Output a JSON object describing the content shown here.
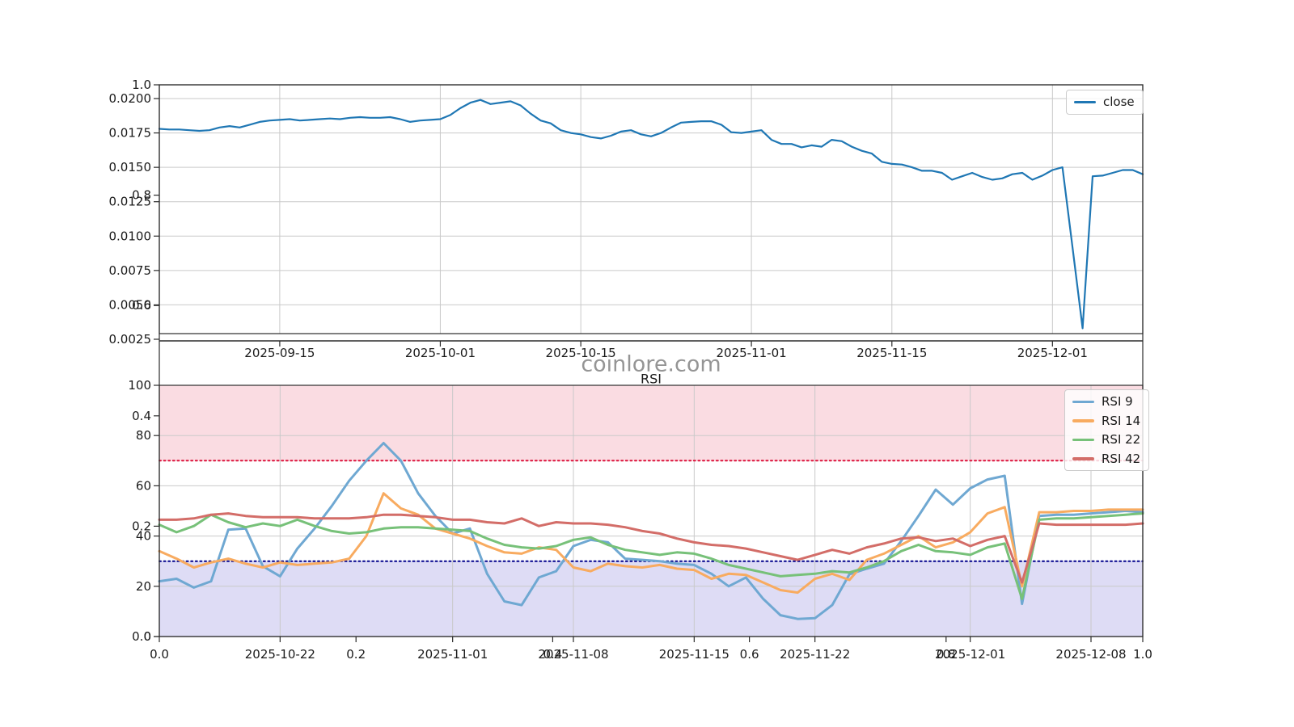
{
  "watermark": "coinlore.com",
  "rsi_title": "RSI",
  "figure_axis": {
    "y_ticks": [
      "1.0",
      "0.8",
      "0.6",
      "0.4",
      "0.2",
      "0.0"
    ],
    "x_ticks": [
      "0.0",
      "0.2",
      "0.4",
      "0.6",
      "0.8",
      "1.0"
    ]
  },
  "colors": {
    "close_line": "#1f77b4",
    "rsi9": "#6fa8d2",
    "rsi14": "#f8ab60",
    "rsi22": "#77c179",
    "rsi42": "#d36d68",
    "overbought_dotted": "#dc143c",
    "oversold_dotted": "#00008b",
    "overbought_band": "#fadce2",
    "oversold_band": "#dedcf5",
    "grid": "#c9c9c9",
    "spine": "#2b2b2b"
  },
  "chart_data": [
    {
      "type": "line",
      "title": "",
      "x_start_date": "2025-09-03",
      "x_end_date": "2025-12-10",
      "x_tick_labels": [
        "2025-09-15",
        "2025-10-01",
        "2025-10-15",
        "2025-11-01",
        "2025-11-15",
        "2025-12-01"
      ],
      "x_tick_days": [
        12,
        28,
        42,
        59,
        73,
        89
      ],
      "y_tick_labels": [
        "0.0200",
        "0.0175",
        "0.0150",
        "0.0125",
        "0.0100",
        "0.0075",
        "0.0050",
        "0.0025"
      ],
      "y_tick_values": [
        0.02,
        0.0175,
        0.015,
        0.0125,
        0.01,
        0.0075,
        0.005,
        0.0025
      ],
      "ylim": [
        0.0023,
        0.021
      ],
      "grid": true,
      "legend_position": "upper right",
      "series": [
        {
          "name": "close",
          "color": "#1f77b4",
          "values": [
            0.0178,
            0.01775,
            0.01775,
            0.0177,
            0.01765,
            0.0177,
            0.0179,
            0.018,
            0.0179,
            0.0181,
            0.0183,
            0.0184,
            0.01845,
            0.0185,
            0.0184,
            0.01845,
            0.0185,
            0.01855,
            0.0185,
            0.0186,
            0.01865,
            0.0186,
            0.0186,
            0.01865,
            0.0185,
            0.0183,
            0.0184,
            0.01845,
            0.0185,
            0.0188,
            0.0193,
            0.0197,
            0.0199,
            0.0196,
            0.0197,
            0.0198,
            0.0195,
            0.0189,
            0.0184,
            0.0182,
            0.0177,
            0.0175,
            0.0174,
            0.0172,
            0.0171,
            0.0173,
            0.0176,
            0.0177,
            0.0174,
            0.01725,
            0.0175,
            0.0179,
            0.01825,
            0.0183,
            0.01835,
            0.01835,
            0.0181,
            0.01755,
            0.0175,
            0.0176,
            0.0177,
            0.017,
            0.0167,
            0.0167,
            0.01645,
            0.0166,
            0.0165,
            0.017,
            0.0169,
            0.0165,
            0.0162,
            0.016,
            0.0154,
            0.01525,
            0.0152,
            0.015,
            0.01475,
            0.01475,
            0.0146,
            0.0141,
            0.01435,
            0.0146,
            0.0143,
            0.0141,
            0.0142,
            0.0145,
            0.0146,
            0.0141,
            0.0144,
            0.0148,
            0.015,
            0.0092,
            0.0033,
            0.01435,
            0.0144,
            0.0146,
            0.0148,
            0.0148,
            0.0145
          ]
        }
      ]
    },
    {
      "type": "line",
      "title": "RSI",
      "x_start_date": "2025-10-15",
      "x_end_date": "2025-12-11",
      "x_tick_labels": [
        "2025-10-22",
        "2025-11-01",
        "2025-11-08",
        "2025-11-15",
        "2025-11-22",
        "2025-12-01",
        "2025-12-08"
      ],
      "x_tick_days": [
        7,
        17,
        24,
        31,
        38,
        47,
        54
      ],
      "y_tick_labels": [
        "100",
        "80",
        "60",
        "40",
        "20",
        "0"
      ],
      "y_tick_values": [
        100,
        80,
        60,
        40,
        20,
        0
      ],
      "ylim": [
        0,
        100
      ],
      "grid": true,
      "legend_position": "upper right",
      "overbought_line": {
        "value": 70,
        "style": "dotted",
        "color": "#dc143c"
      },
      "oversold_line": {
        "value": 30,
        "style": "dotted",
        "color": "#00008b"
      },
      "overbought_band": {
        "from": 70,
        "to": 100
      },
      "oversold_band": {
        "from": 0,
        "to": 30
      },
      "series": [
        {
          "name": "RSI 9",
          "color": "#6fa8d2",
          "values": [
            22,
            23,
            19.5,
            22,
            42.5,
            43,
            28,
            24,
            35,
            43,
            52,
            62,
            70,
            77,
            70,
            57,
            48,
            41,
            43,
            25,
            14,
            12.5,
            23.5,
            26,
            36,
            38.5,
            37.5,
            31,
            30.5,
            30,
            29,
            28.5,
            25,
            20,
            23.5,
            15,
            8.5,
            7,
            7.3,
            12.5,
            24.8,
            27,
            29,
            38,
            48,
            58.5,
            52.5,
            59,
            62.5,
            64,
            13,
            48,
            48.5,
            48.5,
            49,
            49.5,
            50,
            49.5
          ]
        },
        {
          "name": "RSI 14",
          "color": "#f8ab60",
          "values": [
            34,
            31,
            27.5,
            29.5,
            31,
            29,
            27.5,
            29.5,
            28.5,
            29,
            29.5,
            31,
            40,
            57,
            51,
            48.5,
            43,
            41,
            39,
            36,
            33.5,
            33,
            35.5,
            34.5,
            27.5,
            26,
            29,
            28,
            27.5,
            28.5,
            27,
            26.5,
            23,
            25,
            24.5,
            21.5,
            18.5,
            17.5,
            23,
            25,
            22.5,
            30.5,
            33,
            36.5,
            40,
            35.5,
            37.5,
            41.5,
            49,
            51.5,
            20,
            49.5,
            49.5,
            50,
            50,
            50.5,
            50.5,
            50.5
          ]
        },
        {
          "name": "RSI 22",
          "color": "#77c179",
          "values": [
            44.5,
            41.5,
            44,
            48.5,
            45.5,
            43.5,
            45,
            44,
            46.5,
            44,
            42,
            41,
            41.5,
            43,
            43.5,
            43.5,
            43,
            42.5,
            42,
            39,
            36.5,
            35.5,
            35,
            36,
            38.5,
            39.5,
            36.5,
            34.5,
            33.5,
            32.5,
            33.5,
            33,
            31,
            28.5,
            27,
            25.5,
            24,
            24.5,
            25,
            26,
            25.5,
            27.5,
            30,
            34,
            36.5,
            34,
            33.5,
            32.5,
            35.5,
            37,
            15,
            46.5,
            47,
            47,
            47.5,
            48,
            48.5,
            49
          ]
        },
        {
          "name": "RSI 42",
          "color": "#d36d68",
          "values": [
            46.5,
            46.5,
            47,
            48.5,
            49,
            48,
            47.5,
            47.5,
            47.5,
            47,
            47,
            47,
            47.5,
            48.5,
            48.5,
            48,
            47.5,
            46.5,
            46.5,
            45.5,
            45,
            47,
            44,
            45.5,
            45,
            45,
            44.5,
            43.5,
            42,
            41,
            39,
            37.5,
            36.5,
            36,
            35,
            33.5,
            32,
            30.5,
            32.5,
            34.5,
            33,
            35.5,
            37,
            39,
            39.5,
            38,
            39,
            36,
            38.5,
            40,
            21.5,
            45,
            44.5,
            44.5,
            44.5,
            44.5,
            44.5,
            45
          ]
        }
      ]
    }
  ]
}
